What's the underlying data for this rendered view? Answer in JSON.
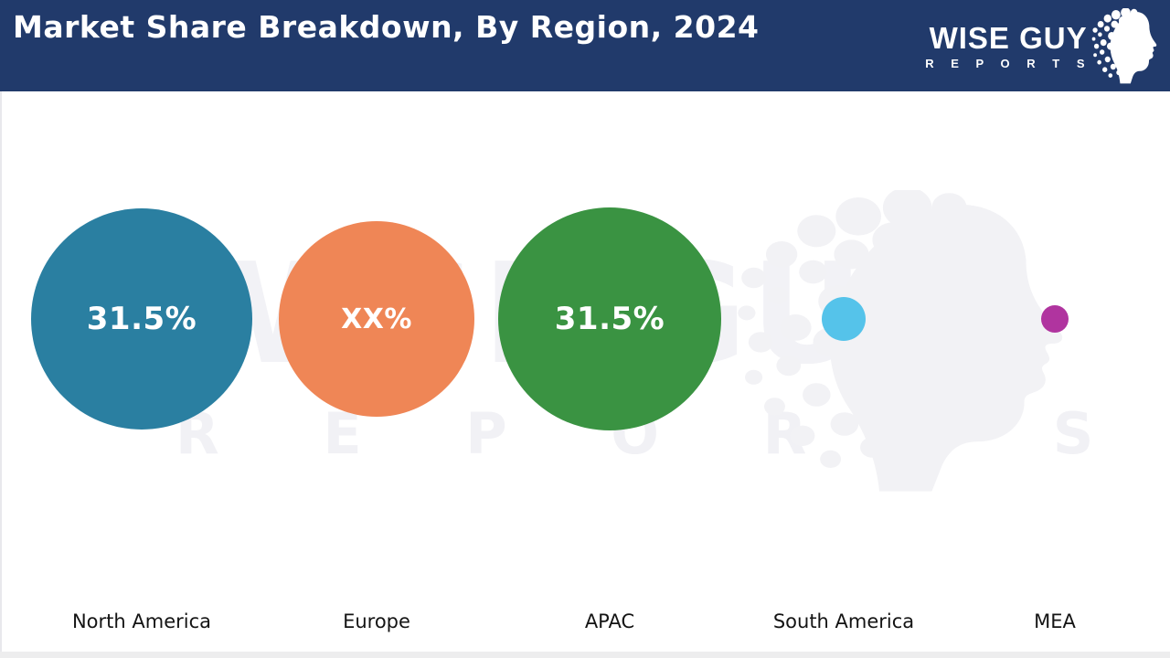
{
  "header": {
    "title": "Market Share Breakdown, By Region, 2024",
    "bg_color": "#213a6b",
    "logo": {
      "line1": "WISE GUY",
      "line2": "R E P O R T S"
    }
  },
  "watermark": {
    "line1": "WISE GUY",
    "line2": "R E P O R T S"
  },
  "chart_data": {
    "type": "bubble",
    "title": "Market Share Breakdown, By Region, 2024",
    "grid": false,
    "legend_position": "labels-below-bubbles",
    "points": [
      {
        "label": "North America",
        "value_label": "31.5%",
        "value": 31.5,
        "color": "#2a7fa1",
        "radius_px": 121
      },
      {
        "label": "Europe",
        "value_label": "XX%",
        "value": null,
        "color": "#ef8656",
        "radius_px": 107
      },
      {
        "label": "APAC",
        "value_label": "31.5%",
        "value": 31.5,
        "color": "#3a9342",
        "radius_px": 122
      },
      {
        "label": "South America",
        "value_label": "",
        "value": null,
        "color": "#55c3ea",
        "radius_px": 24
      },
      {
        "label": "MEA",
        "value_label": "",
        "value": null,
        "color": "#b0349f",
        "radius_px": 15
      }
    ]
  }
}
